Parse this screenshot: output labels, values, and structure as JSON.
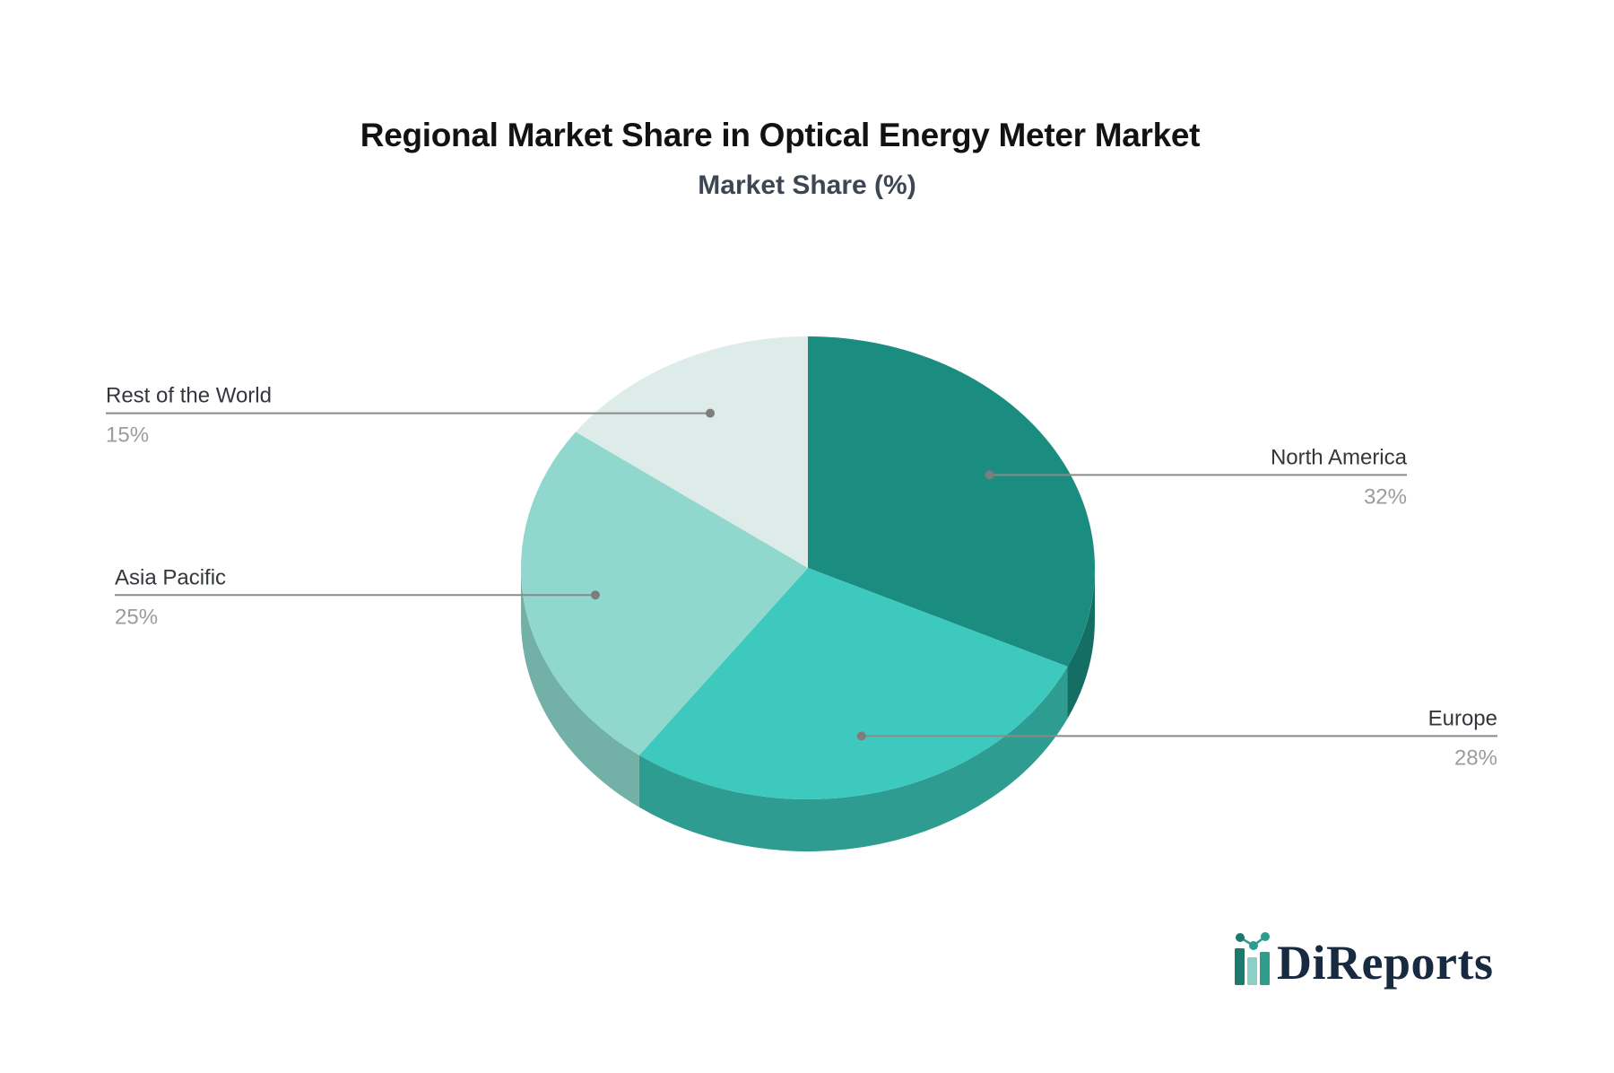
{
  "header": {
    "title": "Regional Market Share in Optical Energy Meter Market",
    "subtitle": "Market Share (%)"
  },
  "chart_data": {
    "type": "pie",
    "title": "Regional Market Share in Optical Energy Meter Market",
    "subtitle": "Market Share (%)",
    "unit": "%",
    "effect": "3d",
    "direction": "clockwise",
    "start_angle_deg": 0,
    "legend_position": "none",
    "categories": [
      "North America",
      "Europe",
      "Asia Pacific",
      "Rest of the World"
    ],
    "values": [
      32,
      28,
      25,
      15
    ],
    "slices": [
      {
        "label": "North America",
        "value": 32,
        "display_value": "32%",
        "color": "#1b8d80",
        "side_color": "#146e63",
        "label_side": "right"
      },
      {
        "label": "Europe",
        "value": 28,
        "display_value": "28%",
        "color": "#3dc9be",
        "side_color": "#2f9c91",
        "label_side": "right"
      },
      {
        "label": "Asia Pacific",
        "value": 25,
        "display_value": "25%",
        "color": "#90d8ce",
        "side_color": "#72b0a8",
        "label_side": "left"
      },
      {
        "label": "Rest of the World",
        "value": 15,
        "display_value": "15%",
        "color": "#ddece9",
        "side_color": "#b9cfca",
        "label_side": "left"
      }
    ],
    "colors": {
      "label_text": "#33373b",
      "value_text": "#9c9c9c",
      "leader_line": "#8a8a8a",
      "leader_dot": "#7d7d7d"
    }
  },
  "branding": {
    "logo_text": "DiReports",
    "logo_icon": "bar-line-chart-icon",
    "logo_text_color": "#182a40",
    "logo_accent_color": "#2a9d8f"
  }
}
